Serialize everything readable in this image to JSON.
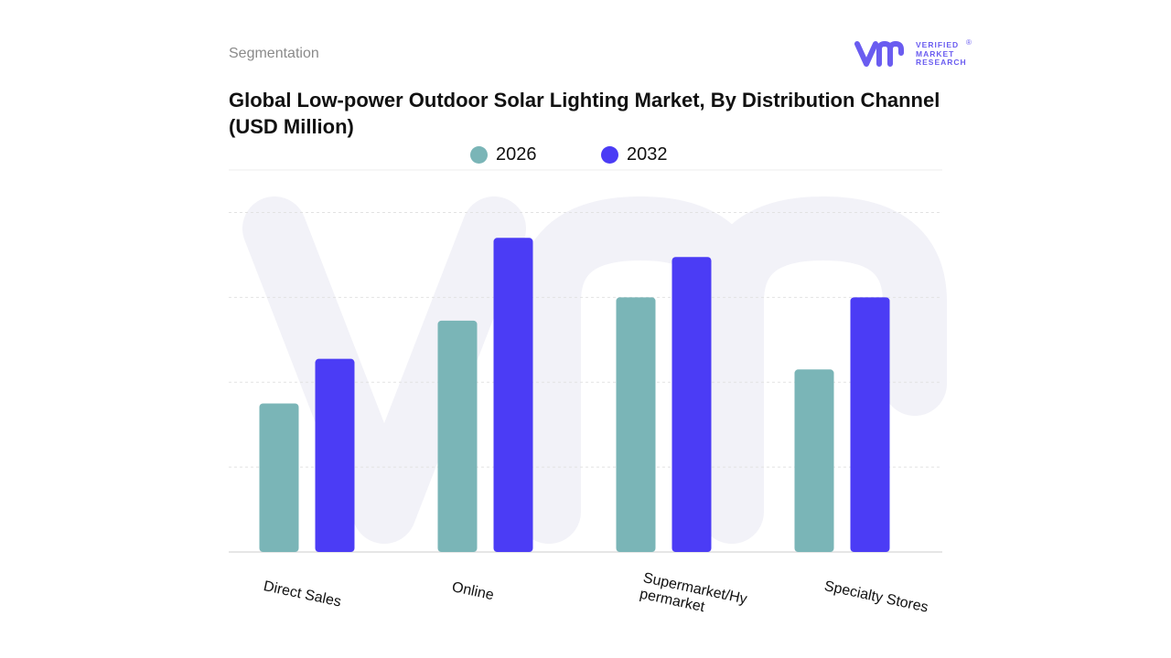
{
  "header": {
    "segment_label": "Segmentation",
    "logo": {
      "line1": "VERIFIED",
      "line2": "MARKET",
      "line3": "RESEARCH",
      "registered": "®"
    }
  },
  "colors": {
    "series_2026": "#7ab5b7",
    "series_2032": "#4b3cf5",
    "logo": "#6a5cf0",
    "gridline": "#e2e2e2",
    "watermark": "#f2f2f8"
  },
  "chart_data": {
    "type": "bar",
    "title": "Global Low-power Outdoor Solar Lighting Market, By Distribution Channel  (USD Million)",
    "categories": [
      "Direct Sales",
      "Online",
      "Supermarket/Hy permarket",
      "Specialty Stores"
    ],
    "series": [
      {
        "name": "2026",
        "values": [
          3.5,
          5.45,
          6.0,
          4.3
        ]
      },
      {
        "name": "2032",
        "values": [
          4.55,
          7.4,
          6.95,
          6.0
        ]
      }
    ],
    "xlabel": "",
    "ylabel": "",
    "ylim": [
      0,
      9
    ],
    "grid": true,
    "legend_position": "top"
  }
}
